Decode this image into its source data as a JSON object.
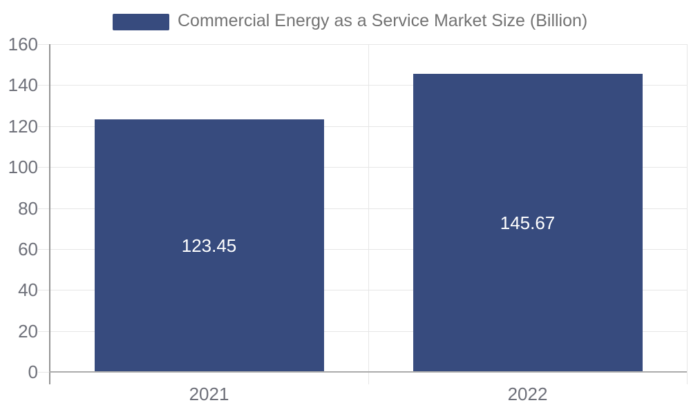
{
  "legend": {
    "label": "Commercial Energy as a Service Market Size (Billion)"
  },
  "chart_data": {
    "type": "bar",
    "title": "Commercial Energy as a Service Market Size (Billion)",
    "categories": [
      "2021",
      "2022"
    ],
    "series": [
      {
        "name": "Commercial Energy as a Service Market Size (Billion)",
        "values": [
          123.45,
          145.67
        ]
      }
    ],
    "value_labels": [
      "123.45",
      "145.67"
    ],
    "xlabel": "",
    "ylabel": "",
    "ylim": [
      0,
      160
    ],
    "yticks": [
      0,
      20,
      40,
      60,
      80,
      100,
      120,
      140,
      160
    ],
    "grid": true,
    "legend_position": "top-left",
    "colors": {
      "bar": "#374b7e",
      "value_label": "#ffffff",
      "axis_text": "#6e7079",
      "legend_text": "#737373",
      "y_axis_line": "#949494",
      "x_axis_line": "#ababab",
      "grid_line": "#e6e6e6",
      "background": "#ffffff"
    }
  }
}
